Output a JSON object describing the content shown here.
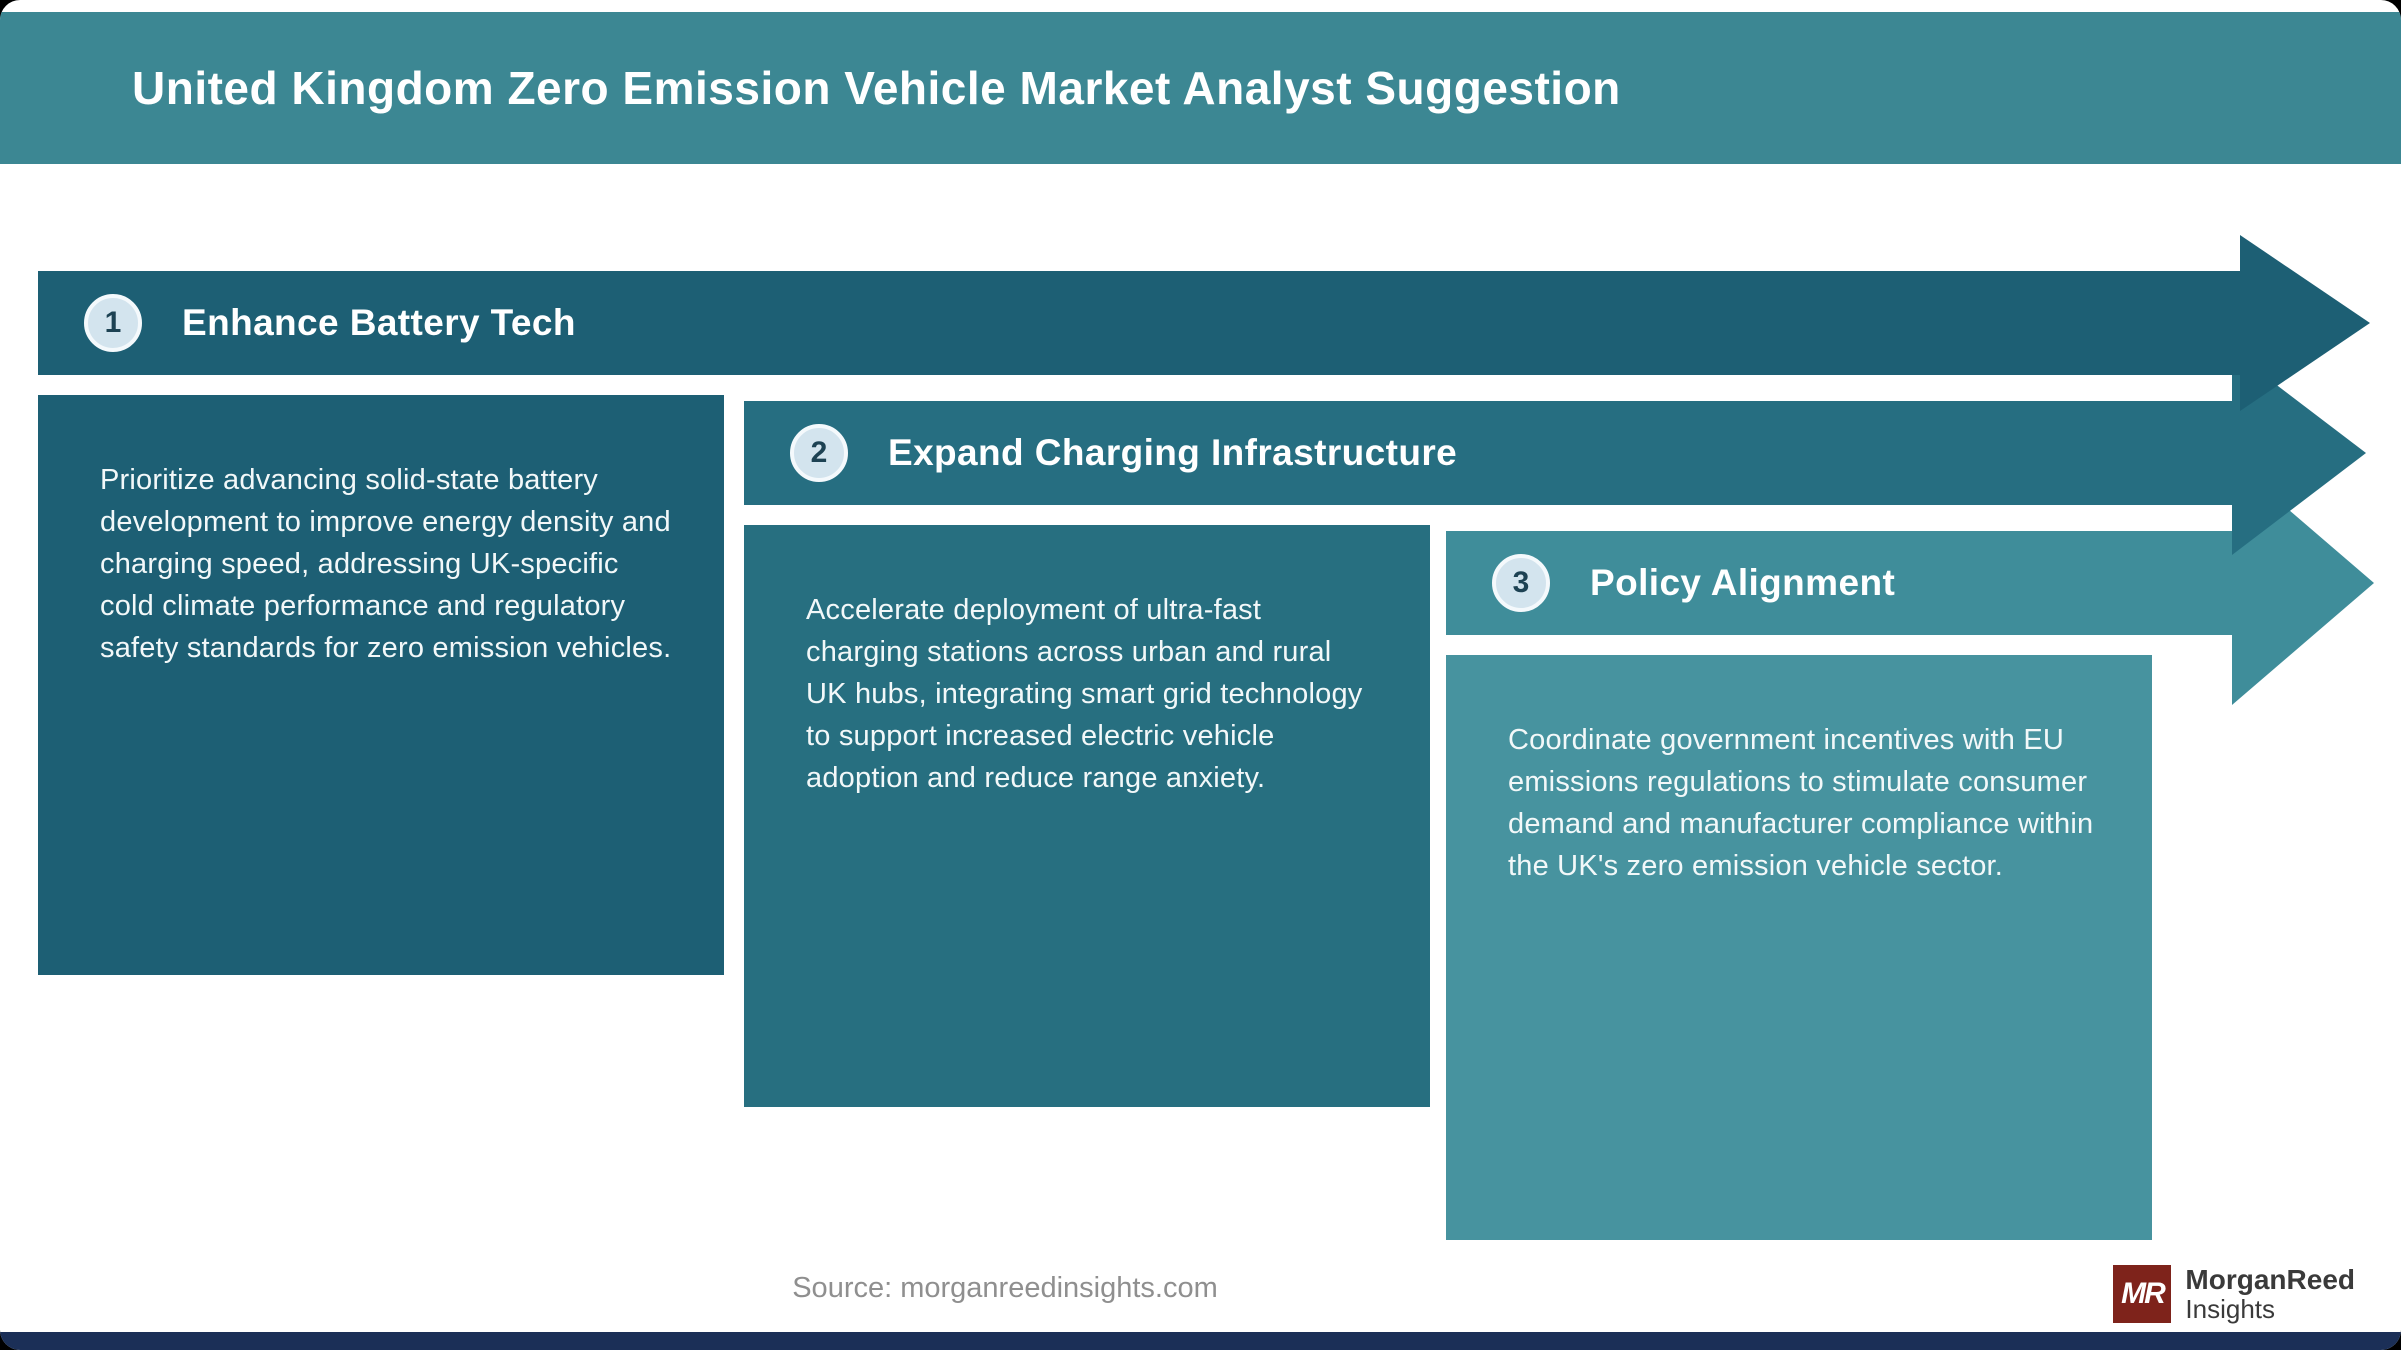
{
  "header": {
    "title": "United Kingdom Zero Emission Vehicle Market Analyst Suggestion"
  },
  "steps": [
    {
      "number": "1",
      "title": "Enhance Battery Tech",
      "description": "Prioritize advancing solid-state battery development to improve energy density and charging speed, addressing UK-specific cold climate performance and regulatory safety standards for zero emission vehicles.",
      "band_color": "#1d5f74",
      "box_color": "#1d5f74"
    },
    {
      "number": "2",
      "title": "Expand Charging Infrastructure",
      "description": "Accelerate deployment of ultra-fast charging stations across urban and rural UK hubs, integrating smart grid technology to support increased electric vehicle adoption and reduce range anxiety.",
      "band_color": "#266e81",
      "box_color": "#276f80"
    },
    {
      "number": "3",
      "title": "Policy Alignment",
      "description": "Coordinate government incentives with EU emissions regulations to stimulate consumer demand and manufacturer compliance within the UK's zero emission vehicle sector.",
      "band_color": "#3f8d9a",
      "box_color": "#47939f"
    }
  ],
  "footer": {
    "source": "Source: morganreedinsights.com"
  },
  "logo": {
    "mark": "MR",
    "name": "MorganReed",
    "tagline": "Insights"
  },
  "colors": {
    "header_bg": "#3c8793",
    "bottom_bar": "#1b2f57",
    "badge_bg": "#d3e4ee",
    "badge_text": "#1d4253",
    "source_text": "#8f8f8f",
    "logo_mark_bg": "#7e231b"
  }
}
